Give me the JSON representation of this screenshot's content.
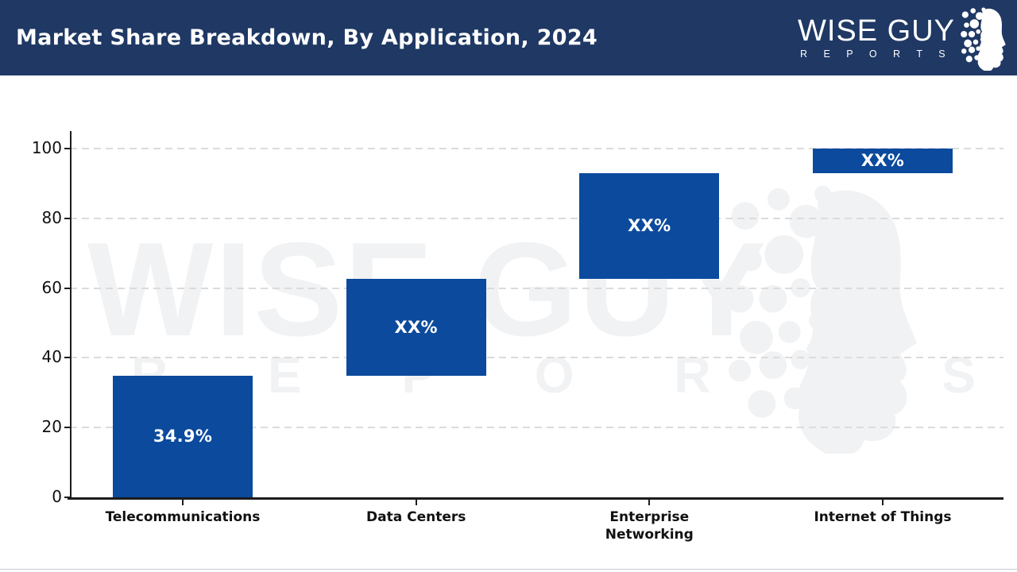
{
  "header": {
    "title": "Market Share Breakdown, By Application, 2024",
    "logo": {
      "name": "WISE GUY",
      "subname": "R E P O R T S"
    }
  },
  "watermark": {
    "line1": "WISE GUY",
    "line2": "R E P O R T S"
  },
  "colors": {
    "header_bg": "#1F3864",
    "bar": "#0B4A9D",
    "grid": "#DBDBDB",
    "axis": "#1C1C1C",
    "watermark": "#F1F2F4"
  },
  "chart_data": {
    "type": "bar",
    "subtype": "waterfall",
    "title": "Market Share Breakdown, By Application, 2024",
    "categories": [
      "Telecommunications",
      "Data Centers",
      "Enterprise Networking",
      "Internet of Things"
    ],
    "categories_lines": [
      [
        "Telecommunications"
      ],
      [
        "Data Centers"
      ],
      [
        "Enterprise",
        "Networking"
      ],
      [
        "Internet of Things"
      ]
    ],
    "series": [
      {
        "name": "Telecommunications",
        "start": 0,
        "end": 34.9,
        "value": 34.9,
        "label": "34.9%"
      },
      {
        "name": "Data Centers",
        "start": 34.9,
        "end": 62.7,
        "value": 27.8,
        "label": "XX%"
      },
      {
        "name": "Enterprise Networking",
        "start": 62.7,
        "end": 93.0,
        "value": 30.3,
        "label": "XX%"
      },
      {
        "name": "Internet of Things",
        "start": 93.0,
        "end": 100.0,
        "value": 7.0,
        "label": "XX%"
      }
    ],
    "xlabel": "",
    "ylabel": "",
    "ylim": [
      0,
      100
    ],
    "yticks": [
      0,
      20,
      40,
      60,
      80,
      100
    ],
    "grid": {
      "horizontal": true,
      "style": "dashed"
    },
    "bar_color": "#0B4A9D",
    "legend": null
  }
}
